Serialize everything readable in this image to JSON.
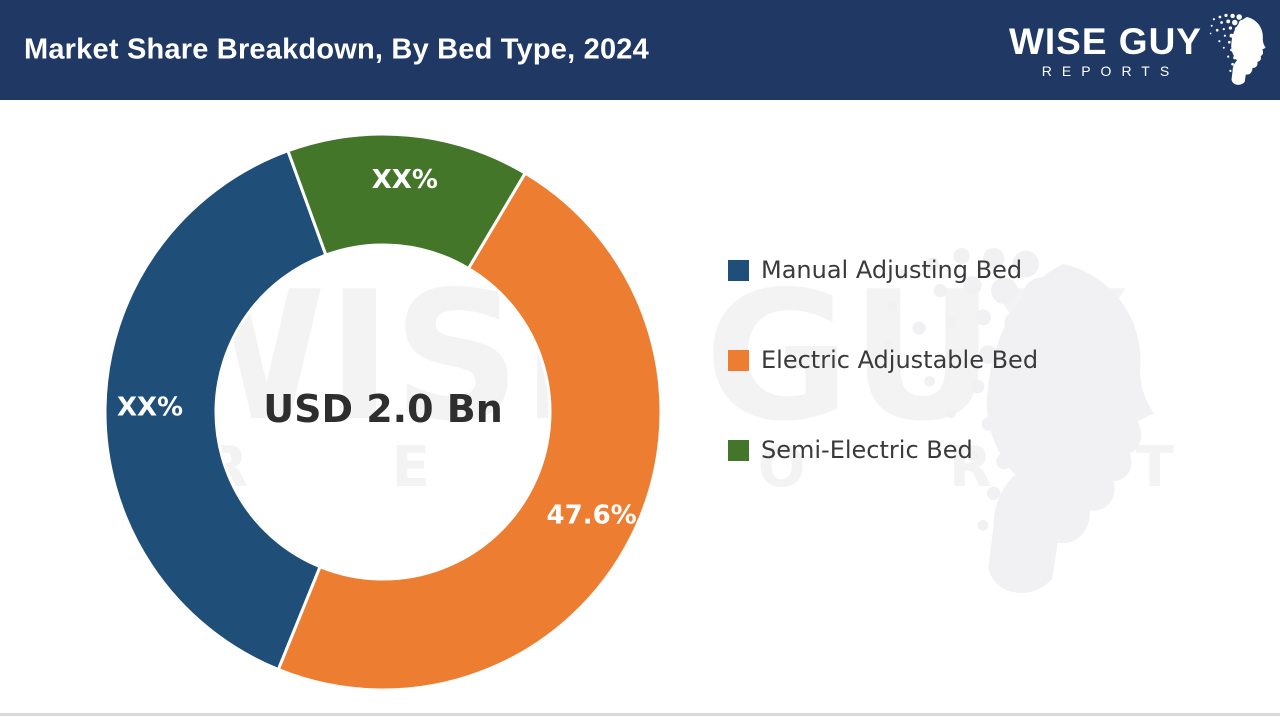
{
  "header": {
    "title": "Market Share Breakdown, By Bed Type, 2024",
    "bg_color": "#203864",
    "logo_line1": "WISE GUY",
    "logo_line2": "REPORTS"
  },
  "watermark": {
    "line1": "WISE GUY",
    "line2": "R E P O R T S"
  },
  "chart_data": {
    "type": "pie",
    "title": "Market Share Breakdown, By Bed Type, 2024",
    "donut": true,
    "center_label": "USD 2.0 Bn",
    "start_angle_deg": 110,
    "counterclockwise": true,
    "legend_position": "right",
    "slice_label_color": "#ffffff",
    "separator_color": "#ffffff",
    "series": [
      {
        "name": "Manual Adjusting Bed",
        "value": 38.3,
        "display_label": "XX%",
        "color": "#1f4e79"
      },
      {
        "name": "Electric Adjustable Bed",
        "value": 47.6,
        "display_label": "47.6%",
        "color": "#ed7d31"
      },
      {
        "name": "Semi-Electric Bed",
        "value": 14.1,
        "display_label": "XX%",
        "color": "#44762a"
      }
    ]
  }
}
